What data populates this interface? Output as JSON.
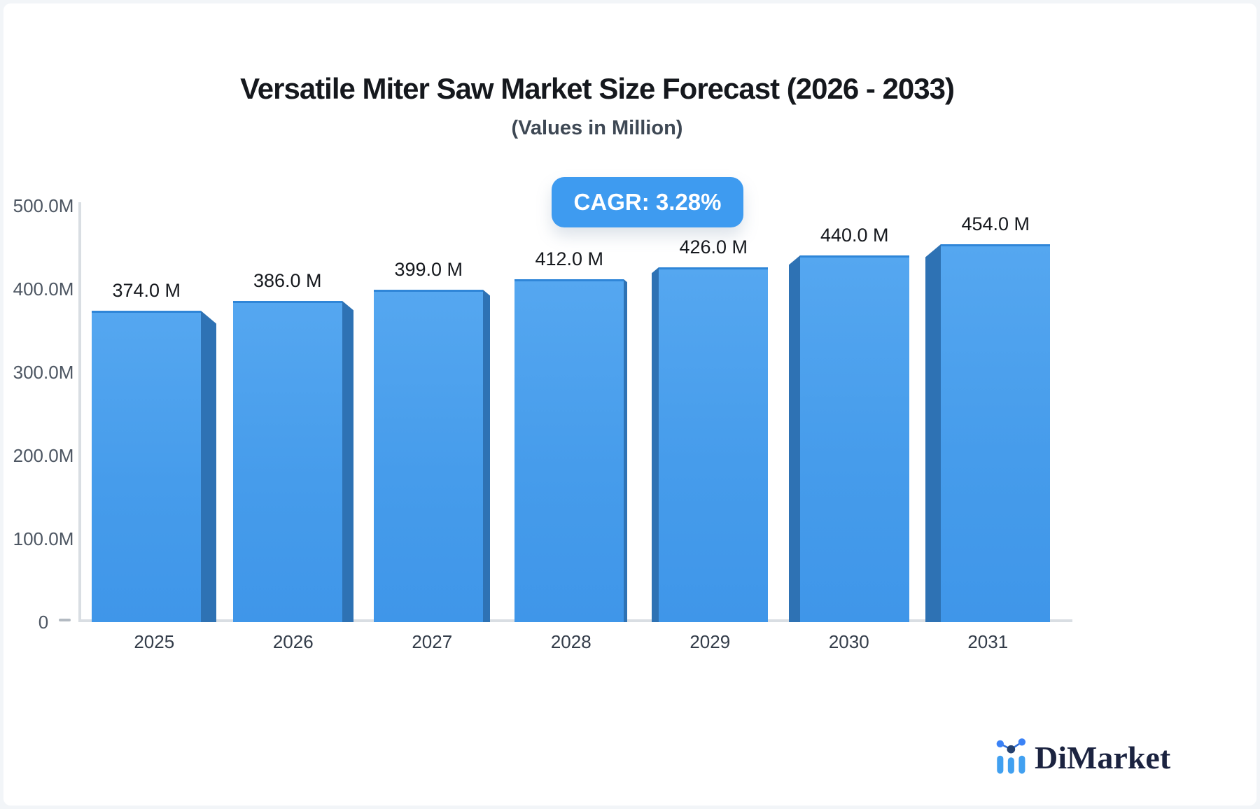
{
  "header": {
    "title": "Versatile Miter Saw Market Size Forecast (2026 - 2033)",
    "subtitle": "(Values in Million)",
    "cagr_badge": "CAGR: 3.28%"
  },
  "chart_data": {
    "type": "bar",
    "title": "Versatile Miter Saw Market Size Forecast (2026 - 2033)",
    "subtitle": "(Values in Million)",
    "categories": [
      "2025",
      "2026",
      "2027",
      "2028",
      "2029",
      "2030",
      "2031"
    ],
    "values": [
      374,
      386,
      399,
      412,
      426,
      440,
      454
    ],
    "value_labels": [
      "374.0 M",
      "386.0 M",
      "399.0 M",
      "412.0 M",
      "426.0 M",
      "440.0 M",
      "454.0 M"
    ],
    "cagr_annotation": "CAGR: 3.28%",
    "ylim": [
      0,
      500
    ],
    "ytick_values": [
      0,
      100,
      200,
      300,
      400,
      500
    ],
    "ytick_labels": [
      "0",
      "100.0M",
      "200.0M",
      "300.0M",
      "400.0M",
      "500.0M"
    ],
    "grid": "off",
    "legend": "none",
    "bar_face_color": "#469ceb",
    "bar_face_gradient_top": "#55a7f0",
    "bar_face_gradient_bottom": "#3f96e9",
    "bar_top_edge_color": "#2f86d8",
    "bar_side_color": "#2e72b4",
    "badge_color": "#3e9bf0",
    "axis_line_color": "#d9dee3",
    "label_color": "#15181d"
  },
  "logo": {
    "text": "DiMarket",
    "icon": "mini-bar-line-chart-icon",
    "icon_bar_color": "#41a0f0",
    "icon_dot_color": "#3b82f6",
    "icon_mid_dot_color": "#24406e",
    "text_color": "#1b2340"
  }
}
